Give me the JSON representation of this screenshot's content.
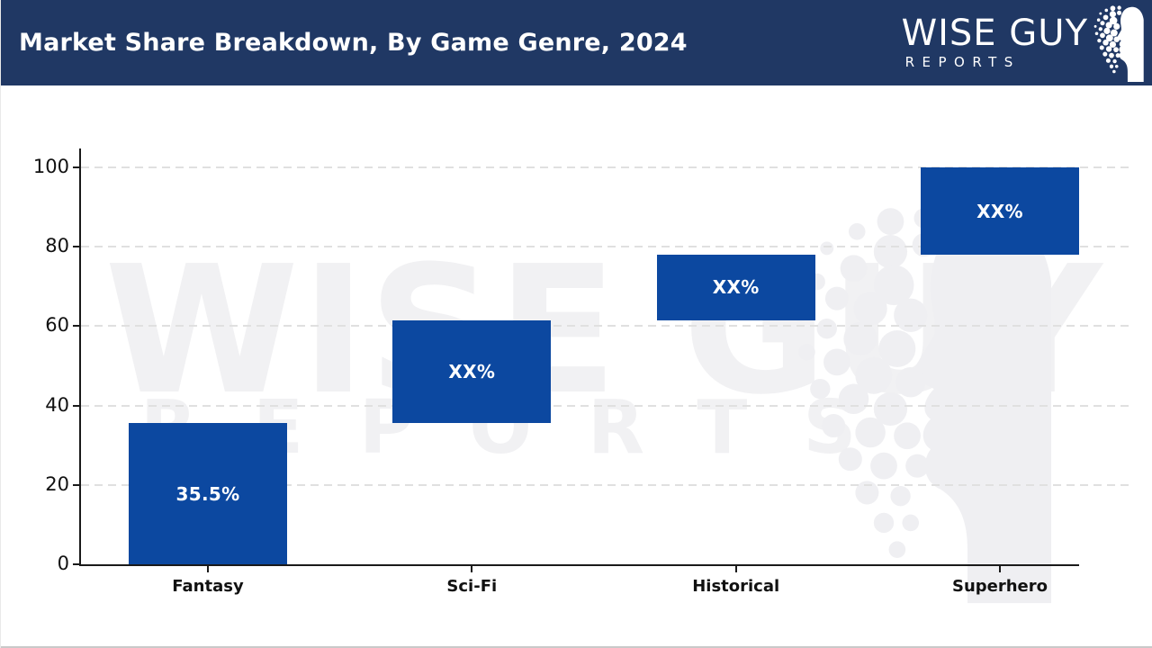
{
  "header": {
    "title": "Market Share Breakdown, By Game Genre, 2024",
    "brand": {
      "line1": "WISE GUY",
      "line2": "REPORTS",
      "logo_icon": "dotted-face-profile-icon"
    }
  },
  "watermark": {
    "line1": "WISE GUY",
    "line2": "REPORTS",
    "logo_icon": "dotted-face-profile-icon"
  },
  "chart_data": {
    "type": "bar",
    "subtype": "waterfall-floating-bars",
    "title": "Market Share Breakdown, By Game Genre, 2024",
    "categories": [
      "Fantasy",
      "Sci-Fi",
      "Historical",
      "Superhero"
    ],
    "segments": [
      {
        "category": "Fantasy",
        "start": 0,
        "end": 35.5,
        "label": "35.5%"
      },
      {
        "category": "Sci-Fi",
        "start": 35.5,
        "end": 61.5,
        "label": "XX%"
      },
      {
        "category": "Historical",
        "start": 61.5,
        "end": 78,
        "label": "XX%"
      },
      {
        "category": "Superhero",
        "start": 78,
        "end": 100,
        "label": "XX%"
      }
    ],
    "xlabel": "",
    "ylabel": "",
    "ylim": [
      0,
      100
    ],
    "yticks": [
      0,
      20,
      40,
      60,
      80,
      100
    ],
    "grid": "dashed-horizontal",
    "legend": "none",
    "bar_color": "#0c48a0",
    "bar_label_color": "#ffffff"
  },
  "palette": {
    "header_bg": "#203864",
    "title_text": "#ffffff",
    "axis": "#1a1a1a",
    "gridline": "#e0e0e0",
    "watermark": "#f1f1f3",
    "page_bg": "#ffffff",
    "bottom_rule": "#c9c9c9"
  }
}
